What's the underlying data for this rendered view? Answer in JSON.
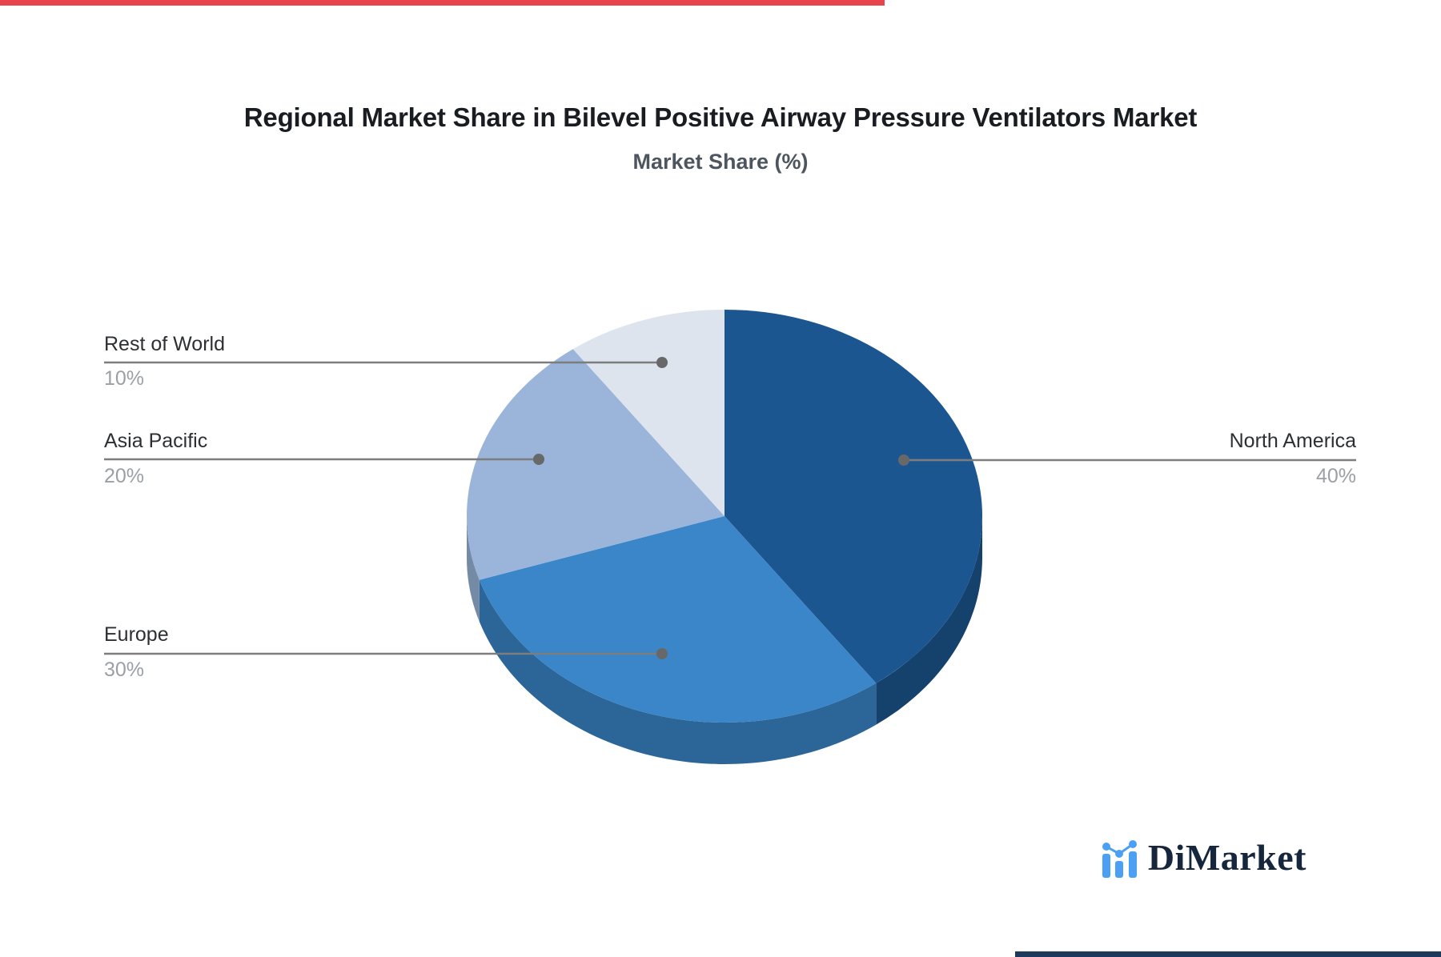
{
  "page": {
    "background": "#ffffff",
    "top_accent_color": "#e9434b",
    "bottom_accent_color": "#1d3a5c"
  },
  "header": {
    "title": "Regional Market Share in Bilevel Positive Airway Pressure Ventilators Market",
    "subtitle": "Market Share (%)"
  },
  "chart_data": {
    "type": "pie",
    "title": "Regional Market Share in Bilevel Positive Airway Pressure Ventilators Market",
    "subtitle": "Market Share (%)",
    "unit": "%",
    "start_angle_deg": 90,
    "direction": "clockwise",
    "effect": "3d-depth",
    "legend_position": "none",
    "labels_style": "callout-lines",
    "categories": [
      "North America",
      "Europe",
      "Asia Pacific",
      "Rest of World"
    ],
    "values": [
      40,
      30,
      20,
      10
    ],
    "slices": [
      {
        "label": "North America",
        "value": 40,
        "display_value": "40%",
        "color": "#1c5690"
      },
      {
        "label": "Europe",
        "value": 30,
        "display_value": "30%",
        "color": "#3a86c8"
      },
      {
        "label": "Asia Pacific",
        "value": 20,
        "display_value": "20%",
        "color": "#9ab5d9"
      },
      {
        "label": "Rest of World",
        "value": 10,
        "display_value": "10%",
        "color": "#dde4ee"
      }
    ],
    "callout_line_color": "#7d7d7d",
    "callout_dot_color": "#686868",
    "label_color": "#2d2f33",
    "value_color": "#9aa0a6"
  },
  "branding": {
    "logo_text": "DiMarket",
    "logo_icon": "bar-chart-with-trend-dots-icon",
    "logo_text_color": "#16263c",
    "logo_icon_color": "#4ba0f4"
  }
}
